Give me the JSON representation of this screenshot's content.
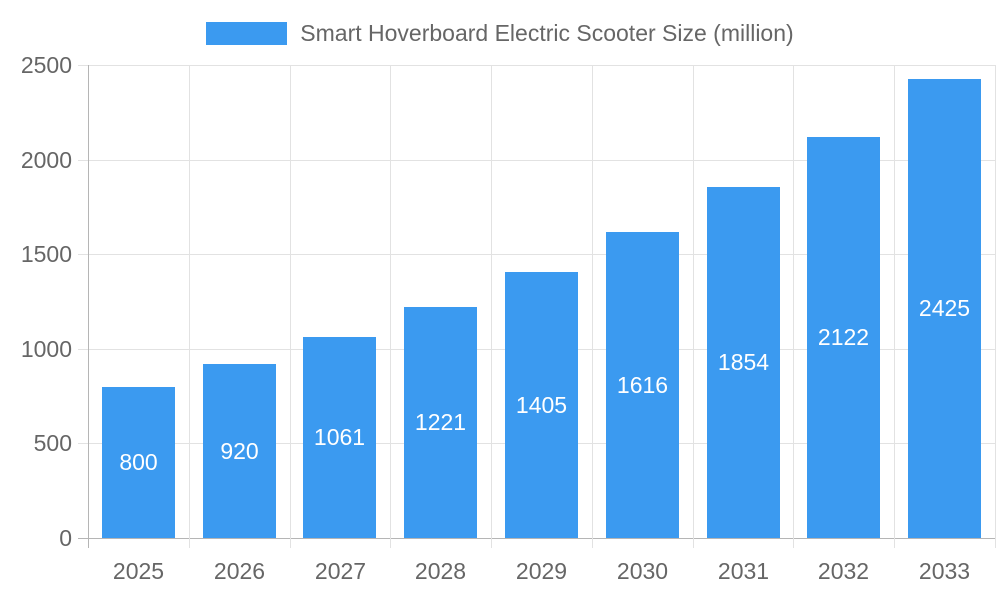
{
  "colors": {
    "bar": "#3B9AF0",
    "grid": "#E2E2E2",
    "axis": "#B5B5B5",
    "tick_text": "#666666",
    "value_label_text": "#FFFFFF",
    "background": "#FFFFFF"
  },
  "legend": {
    "label": "Smart Hoverboard Electric Scooter Size (million)"
  },
  "chart_data": {
    "type": "bar",
    "title": "Smart Hoverboard Electric Scooter Size (million)",
    "categories": [
      "2025",
      "2026",
      "2027",
      "2028",
      "2029",
      "2030",
      "2031",
      "2032",
      "2033"
    ],
    "series": [
      {
        "name": "Smart Hoverboard Electric Scooter Size (million)",
        "values": [
          800,
          920,
          1061,
          1221,
          1405,
          1616,
          1854,
          2122,
          2425
        ]
      }
    ],
    "value_labels": [
      "800",
      "920",
      "1061",
      "1221",
      "1405",
      "1616",
      "1854",
      "2122",
      "2425"
    ],
    "xlabel": "",
    "ylabel": "",
    "ylim": [
      0,
      2500
    ],
    "yticks": [
      0,
      500,
      1000,
      1500,
      2000,
      2500
    ],
    "ytick_labels": [
      "0",
      "500",
      "1000",
      "1500",
      "2000",
      "2500"
    ],
    "grid": true,
    "legend_position": "top",
    "value_label_position": "center-inside"
  }
}
